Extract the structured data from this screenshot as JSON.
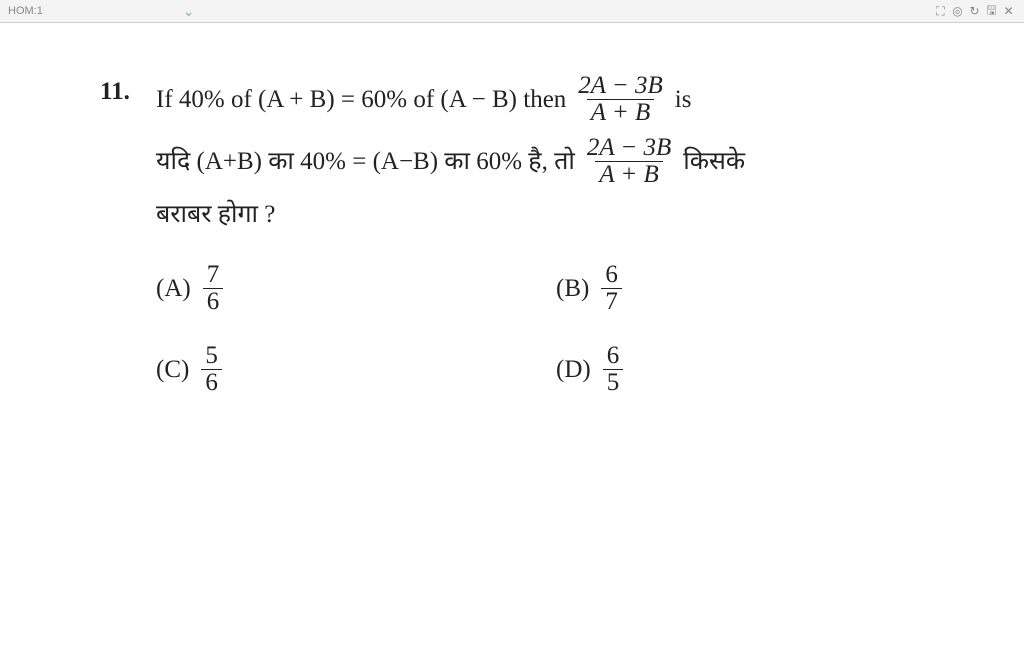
{
  "topbar": {
    "label": "HOM:1",
    "icons": [
      "crop-icon",
      "target-icon",
      "refresh-icon",
      "save-icon",
      "close-icon"
    ]
  },
  "question": {
    "number": "11.",
    "en_prefix": "If 40% of (A + B) = 60% of (A − B) then",
    "en_suffix": "is",
    "hi_prefix": "यदि (A+B) का 40% = (A−B) का 60% है, तो",
    "hi_suffix": "किसके",
    "hi_line2": "बराबर होगा ?",
    "frac_num": "2A − 3B",
    "frac_den": "A + B"
  },
  "options": {
    "a": {
      "label": "(A)",
      "num": "7",
      "den": "6"
    },
    "b": {
      "label": "(B)",
      "num": "6",
      "den": "7"
    },
    "c": {
      "label": "(C)",
      "num": "5",
      "den": "6"
    },
    "d": {
      "label": "(D)",
      "num": "6",
      "den": "5"
    }
  },
  "style": {
    "page_bg": "#ffffff",
    "text_color": "#222222",
    "topbar_bg": "#f4f4f4",
    "font_size_body": 25,
    "font_size_topbar": 11
  }
}
